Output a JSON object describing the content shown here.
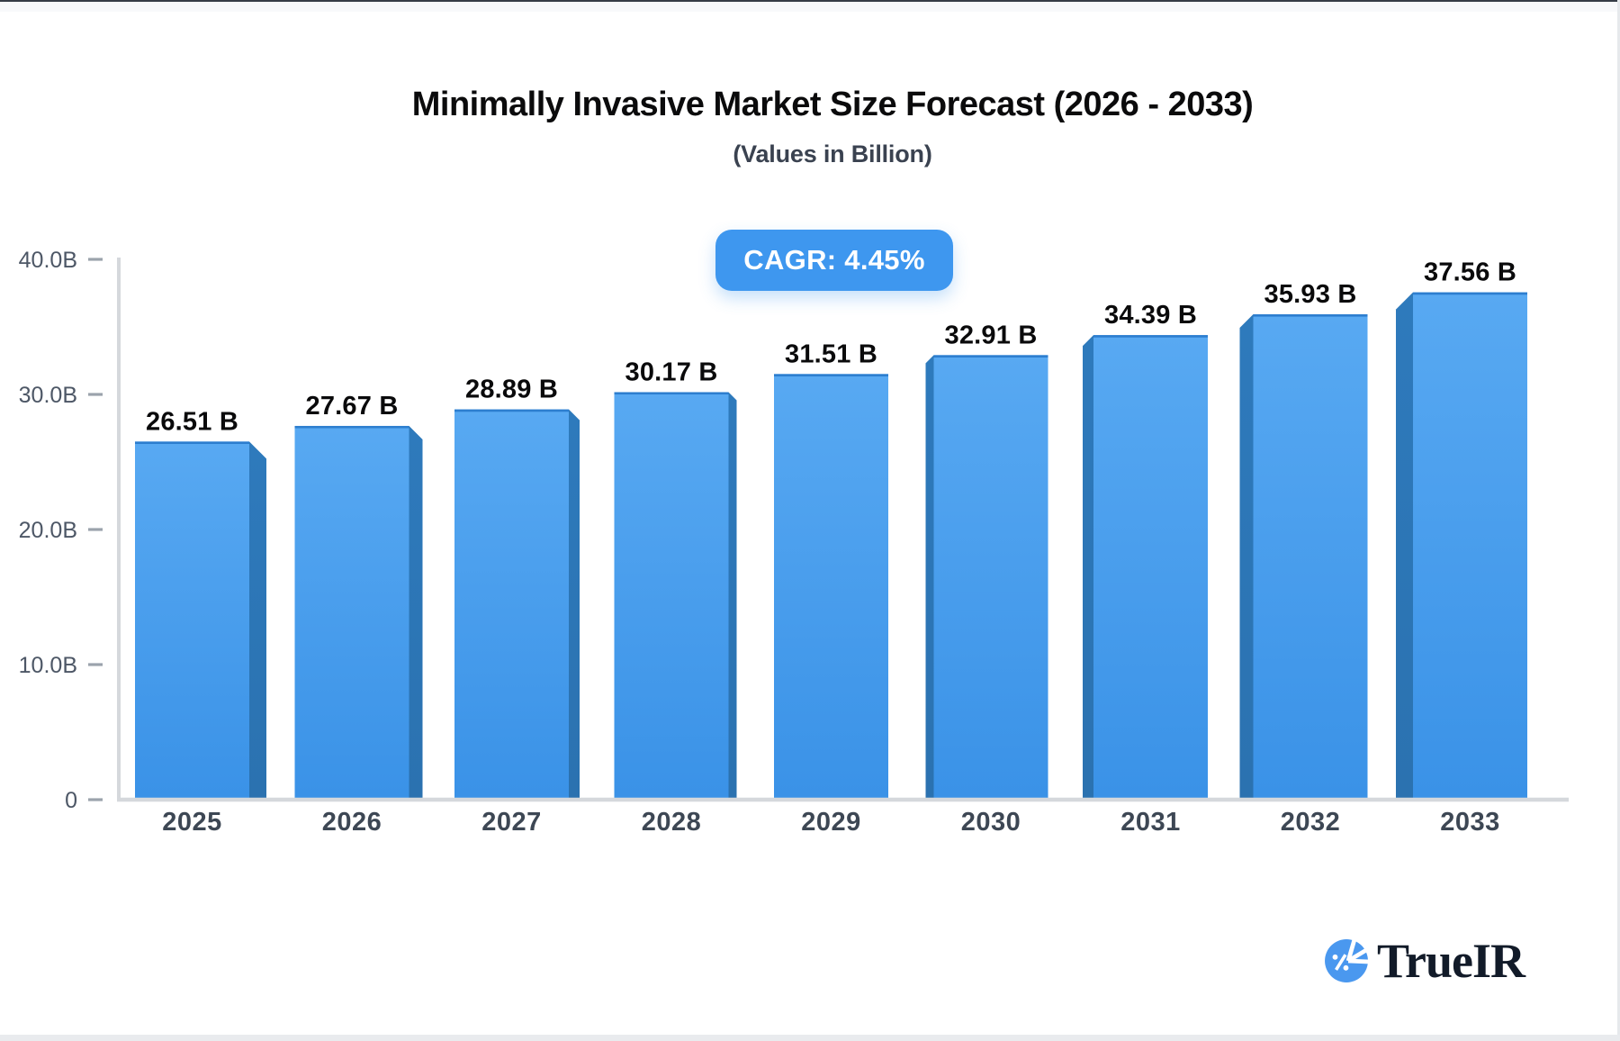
{
  "title": "Minimally Invasive Market Size Forecast (2026 - 2033)",
  "subtitle": "(Values in Billion)",
  "badge": {
    "label": "CAGR: 4.45%"
  },
  "logo": {
    "text": "TrueIR",
    "icon": "pie-chart-icon"
  },
  "colors": {
    "accent_blue": "#3e97ef",
    "bar_face_top": "#58a9f2",
    "bar_face_bottom": "#3a92e7",
    "bar_side_top": "#2e7abc",
    "bar_side_bottom": "#2b72b0",
    "bar_top_edge": "#2d7ecf",
    "axis_line": "#d5d8dc",
    "tick_dash": "#9ba3ac",
    "y_label": "#4d5766",
    "x_label": "#3d4754",
    "title_text": "#0b0b0c",
    "logo_navy": "#121b29"
  },
  "chart_data": {
    "type": "bar",
    "title": "Minimally Invasive Market Size Forecast (2026 - 2033)",
    "subtitle": "(Values in Billion)",
    "annotation": "CAGR: 4.45%",
    "categories": [
      "2025",
      "2026",
      "2027",
      "2028",
      "2029",
      "2030",
      "2031",
      "2032",
      "2033"
    ],
    "values": [
      26.51,
      27.67,
      28.89,
      30.17,
      31.51,
      32.91,
      34.39,
      35.93,
      37.56
    ],
    "value_labels": [
      "26.51 B",
      "27.67 B",
      "28.89 B",
      "30.17 B",
      "31.51 B",
      "32.91 B",
      "34.39 B",
      "35.93 B",
      "37.56 B"
    ],
    "xlabel": "",
    "ylabel": "",
    "ylim": [
      0,
      40
    ],
    "ytick_values": [
      0,
      10,
      20,
      30,
      40
    ],
    "ytick_labels": [
      "0",
      "10.0B",
      "20.0B",
      "30.0B",
      "40.0B"
    ],
    "grid": false,
    "legend": false,
    "bar_style": "3d-perspective-center"
  }
}
